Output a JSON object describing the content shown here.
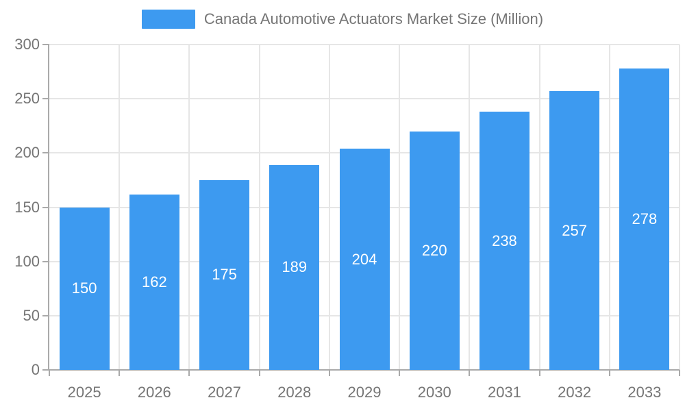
{
  "chart_data": {
    "type": "bar",
    "title": "Canada Automotive Actuators Market Size (Million)",
    "legend_entries": [
      "Canada Automotive Actuators Market Size (Million)"
    ],
    "legend_position": "top-center",
    "categories": [
      "2025",
      "2026",
      "2027",
      "2028",
      "2029",
      "2030",
      "2031",
      "2032",
      "2033"
    ],
    "values": [
      150,
      162,
      175,
      189,
      204,
      220,
      238,
      257,
      278
    ],
    "xlabel": "",
    "ylabel": "",
    "ylim": [
      0,
      300
    ],
    "yticks": [
      0,
      50,
      100,
      150,
      200,
      250,
      300
    ],
    "grid": "on",
    "value_labels": "inside-center-white",
    "colors": {
      "bar": "#3d9af0",
      "bar_label_text": "#ffffff",
      "legend_text": "#757575",
      "axis_text": "#757575",
      "axis_line": "#aaaaaa",
      "gridline": "#e6e6e6",
      "background": "#ffffff"
    }
  }
}
